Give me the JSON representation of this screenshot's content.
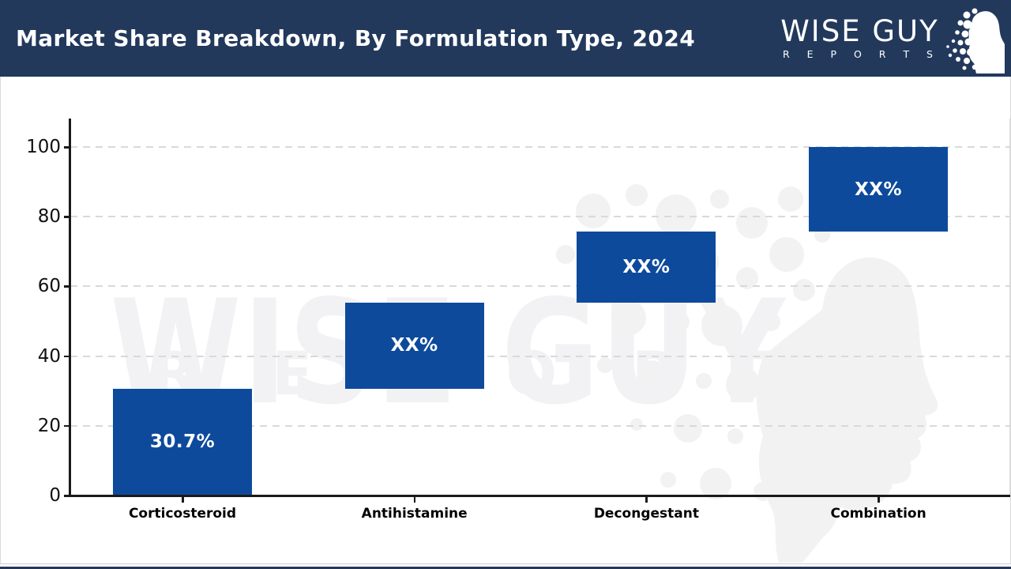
{
  "header": {
    "title": "Market Share Breakdown, By Formulation Type, 2024",
    "logo": {
      "line1": "WISE GUY",
      "line2": "R E P O R T S"
    }
  },
  "watermark": {
    "line1": "WISE GUY",
    "line2": "R E P O R T S"
  },
  "colors": {
    "header_bg": "#22395c",
    "footer_bg": "#22395c",
    "bar": "#0d4a9c",
    "bar_label": "#ffffff",
    "gridline": "#d9d9d9",
    "axis": "#1a1a1a",
    "watermark": "#f2f2f4",
    "title_text": "#ffffff"
  },
  "chart_data": {
    "type": "bar",
    "subtype": "waterfall",
    "title": "Market Share Breakdown, By Formulation Type, 2024",
    "xlabel": "",
    "ylabel": "",
    "categories": [
      "Corticosteroid",
      "Antihistamine",
      "Decongestant",
      "Combination"
    ],
    "segments": [
      {
        "category": "Corticosteroid",
        "start": 0,
        "end": 30.7,
        "label": "30.7%"
      },
      {
        "category": "Antihistamine",
        "start": 30.7,
        "end": 55.3,
        "label": "XX%"
      },
      {
        "category": "Decongestant",
        "start": 55.3,
        "end": 75.7,
        "label": "XX%"
      },
      {
        "category": "Combination",
        "start": 75.7,
        "end": 100,
        "label": "XX%"
      }
    ],
    "y_ticks": [
      0,
      20,
      40,
      60,
      80,
      100
    ],
    "ylim": [
      0,
      108
    ],
    "grid": "horizontal-dashed",
    "legend": "none"
  }
}
